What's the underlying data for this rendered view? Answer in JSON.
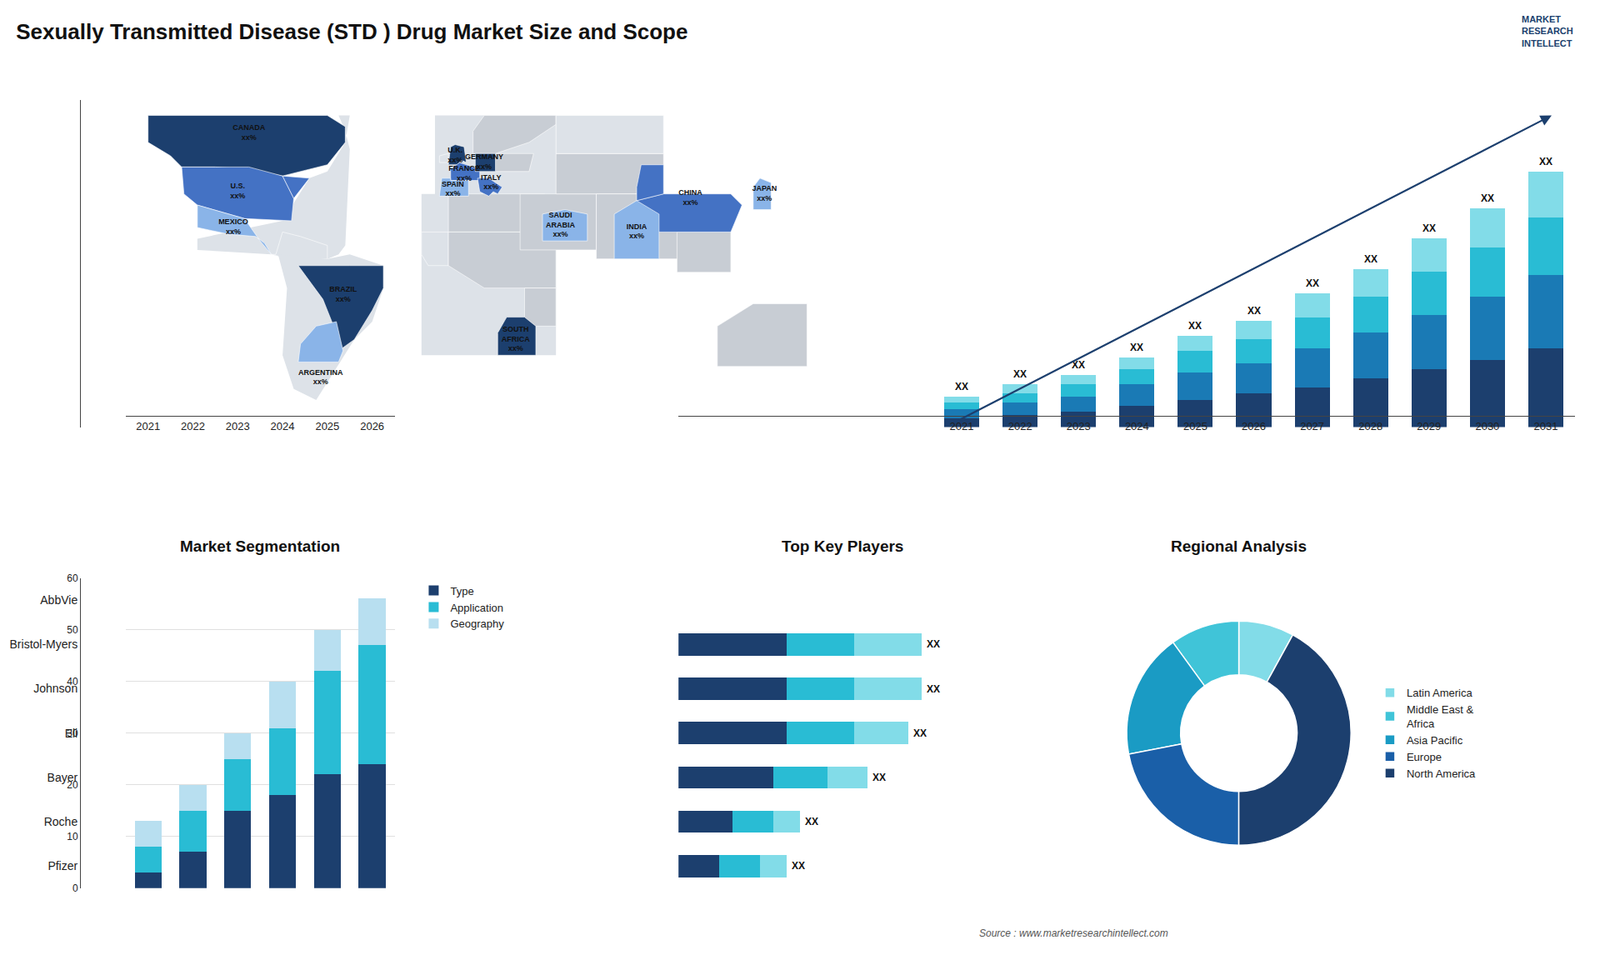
{
  "title": "Sexually Transmitted Disease (STD ) Drug Market Size and Scope",
  "annotations": [
    "MARKET\nRESEARCH\nINTELLECT",
    "Source : www.marketresearchintellect.com"
  ],
  "chart_data": [
    {
      "type": "map",
      "categories": [
        "CANADA\nxx%",
        "U.S.\nxx%",
        "MEXICO\nxx%",
        "BRAZIL\nxx%",
        "ARGENTINA\nxx%",
        "U.K.\nxx%",
        "FRANCE\nxx%",
        "SPAIN\nxx%",
        "GERMANY\nxx%",
        "ITALY\nxx%",
        "SAUDI\nARABIA\nxx%",
        "SOUTH\nAFRICA\nxx%",
        "CHINA\nxx%",
        "INDIA\nxx%",
        "JAPAN\nxx%"
      ],
      "colors": [
        "#1c3f6e",
        "#4472c4",
        "#8ab4e8",
        "#1c3f6e",
        "#8ab4e8",
        "#1c3f6e",
        "#4472c4",
        "#8ab4e8",
        "#1c3f6e",
        "#4472c4",
        "#8ab4e8",
        "#1c3f6e",
        "#4472c4",
        "#8ab4e8",
        "#8ab4e8"
      ],
      "tick_labels": false
    },
    {
      "type": "bar",
      "stacked": true,
      "categories": [
        "2021",
        "2022",
        "2023",
        "2024",
        "2025",
        "2026",
        "2027",
        "2028",
        "2029",
        "2030",
        "2031"
      ],
      "series": [
        {
          "color": "#1c3f6e",
          "values": [
            3,
            4,
            5,
            7,
            9,
            11,
            13,
            16,
            19,
            22,
            26
          ]
        },
        {
          "color": "#1a7ab5",
          "values": [
            3,
            4,
            5,
            7,
            9,
            10,
            13,
            15,
            18,
            21,
            24
          ]
        },
        {
          "color": "#29bcd4",
          "values": [
            2,
            3,
            4,
            5,
            7,
            8,
            10,
            12,
            14,
            16,
            19
          ]
        },
        {
          "color": "#82dce8",
          "values": [
            2,
            3,
            3,
            4,
            5,
            6,
            8,
            9,
            11,
            13,
            15
          ]
        }
      ],
      "annotations": [
        {
          "category": "2021",
          "text": "XX"
        },
        {
          "category": "2022",
          "text": "XX"
        },
        {
          "category": "2023",
          "text": "XX"
        },
        {
          "category": "2024",
          "text": "XX"
        },
        {
          "category": "2025",
          "text": "XX"
        },
        {
          "category": "2026",
          "text": "XX"
        },
        {
          "category": "2027",
          "text": "XX"
        },
        {
          "category": "2028",
          "text": "XX"
        },
        {
          "category": "2029",
          "text": "XX"
        },
        {
          "category": "2030",
          "text": "XX"
        },
        {
          "category": "2031",
          "text": "XX"
        }
      ],
      "ylim": [
        0,
        107.52
      ],
      "tick_labels": "x",
      "grid": false
    },
    {
      "type": "bar",
      "title": "Market Segmentation",
      "stacked": true,
      "categories": [
        "2021",
        "2022",
        "2023",
        "2024",
        "2025",
        "2026"
      ],
      "series": [
        {
          "name": "Type",
          "color": "#1c3f6e",
          "values": [
            3,
            7,
            15,
            18,
            22,
            24
          ]
        },
        {
          "name": "Application",
          "color": "#29bcd4",
          "values": [
            5,
            8,
            10,
            13,
            20,
            23
          ]
        },
        {
          "name": "Geography",
          "color": "#b8dff0",
          "values": [
            5,
            5,
            5,
            9,
            8,
            9
          ]
        }
      ],
      "ylim": [
        0,
        60
      ],
      "yticks": [
        0,
        10,
        20,
        30,
        40,
        50,
        60
      ],
      "grid": true,
      "legend": "right"
    },
    {
      "type": "bar",
      "title": "Top Key Players",
      "orientation": "horizontal",
      "stacked": true,
      "categories": [
        "AbbVie",
        "Bristol-Myers",
        "Johnson",
        "Eli",
        "Bayer",
        "Roche",
        "Pfizer"
      ],
      "series": [
        {
          "color": "#1c3f6e",
          "values": [
            0,
            8,
            8,
            8,
            7,
            4,
            3
          ]
        },
        {
          "color": "#29bcd4",
          "values": [
            0,
            5,
            5,
            5,
            4,
            3,
            3
          ]
        },
        {
          "color": "#82dce8",
          "values": [
            0,
            5,
            5,
            4,
            3,
            2,
            2
          ]
        }
      ],
      "annotations": [
        {
          "category": "Bristol-Myers",
          "text": "XX"
        },
        {
          "category": "Johnson",
          "text": "XX"
        },
        {
          "category": "Eli",
          "text": "XX"
        },
        {
          "category": "Bayer",
          "text": "XX"
        },
        {
          "category": "Roche",
          "text": "XX"
        },
        {
          "category": "Pfizer",
          "text": "XX"
        }
      ],
      "xlim": [
        0,
        24.3
      ],
      "tick_labels": "y",
      "grid": false
    },
    {
      "type": "pie",
      "title": "Regional Analysis",
      "categories": [
        "Latin America",
        "Middle East &\nAfrica",
        "Asia Pacific",
        "Europe",
        "North America"
      ],
      "values": [
        8,
        10,
        18,
        22,
        42
      ],
      "colors": [
        "#82dce8",
        "#40c4d8",
        "#1a9bc4",
        "#1a5fa8",
        "#1c3f6e"
      ],
      "legend": "right"
    }
  ]
}
